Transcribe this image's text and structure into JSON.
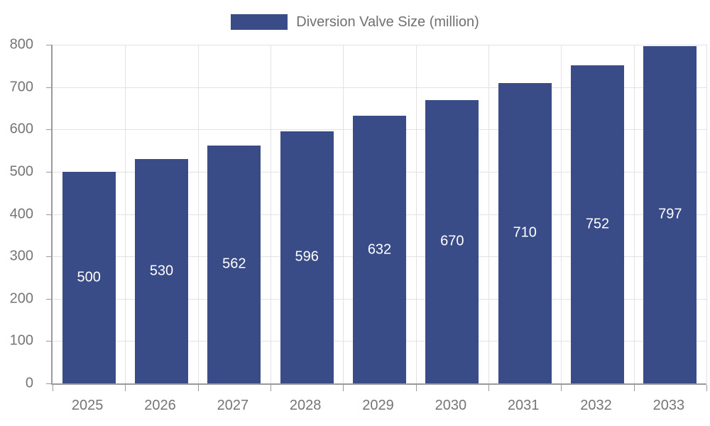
{
  "legend": {
    "label": "Diversion Valve Size (million)"
  },
  "colors": {
    "bar": "#394C87",
    "axis": "#9A9A9A",
    "grid": "#E2E2E2",
    "axis_text": "#757575",
    "legend_text": "#707070",
    "value_label": "#FFFFFF",
    "background": "#FFFFFF"
  },
  "chart_data": {
    "type": "bar",
    "title": "Diversion Valve Size (million)",
    "categories": [
      "2025",
      "2026",
      "2027",
      "2028",
      "2029",
      "2030",
      "2031",
      "2032",
      "2033"
    ],
    "values": [
      500,
      530,
      562,
      596,
      632,
      670,
      710,
      752,
      797
    ],
    "xlabel": "",
    "ylabel": "",
    "ylim": [
      0,
      800
    ],
    "yticks": [
      0,
      100,
      200,
      300,
      400,
      500,
      600,
      700,
      800
    ],
    "grid": true,
    "legend_position": "top-center",
    "value_label_position": "inside-center"
  }
}
